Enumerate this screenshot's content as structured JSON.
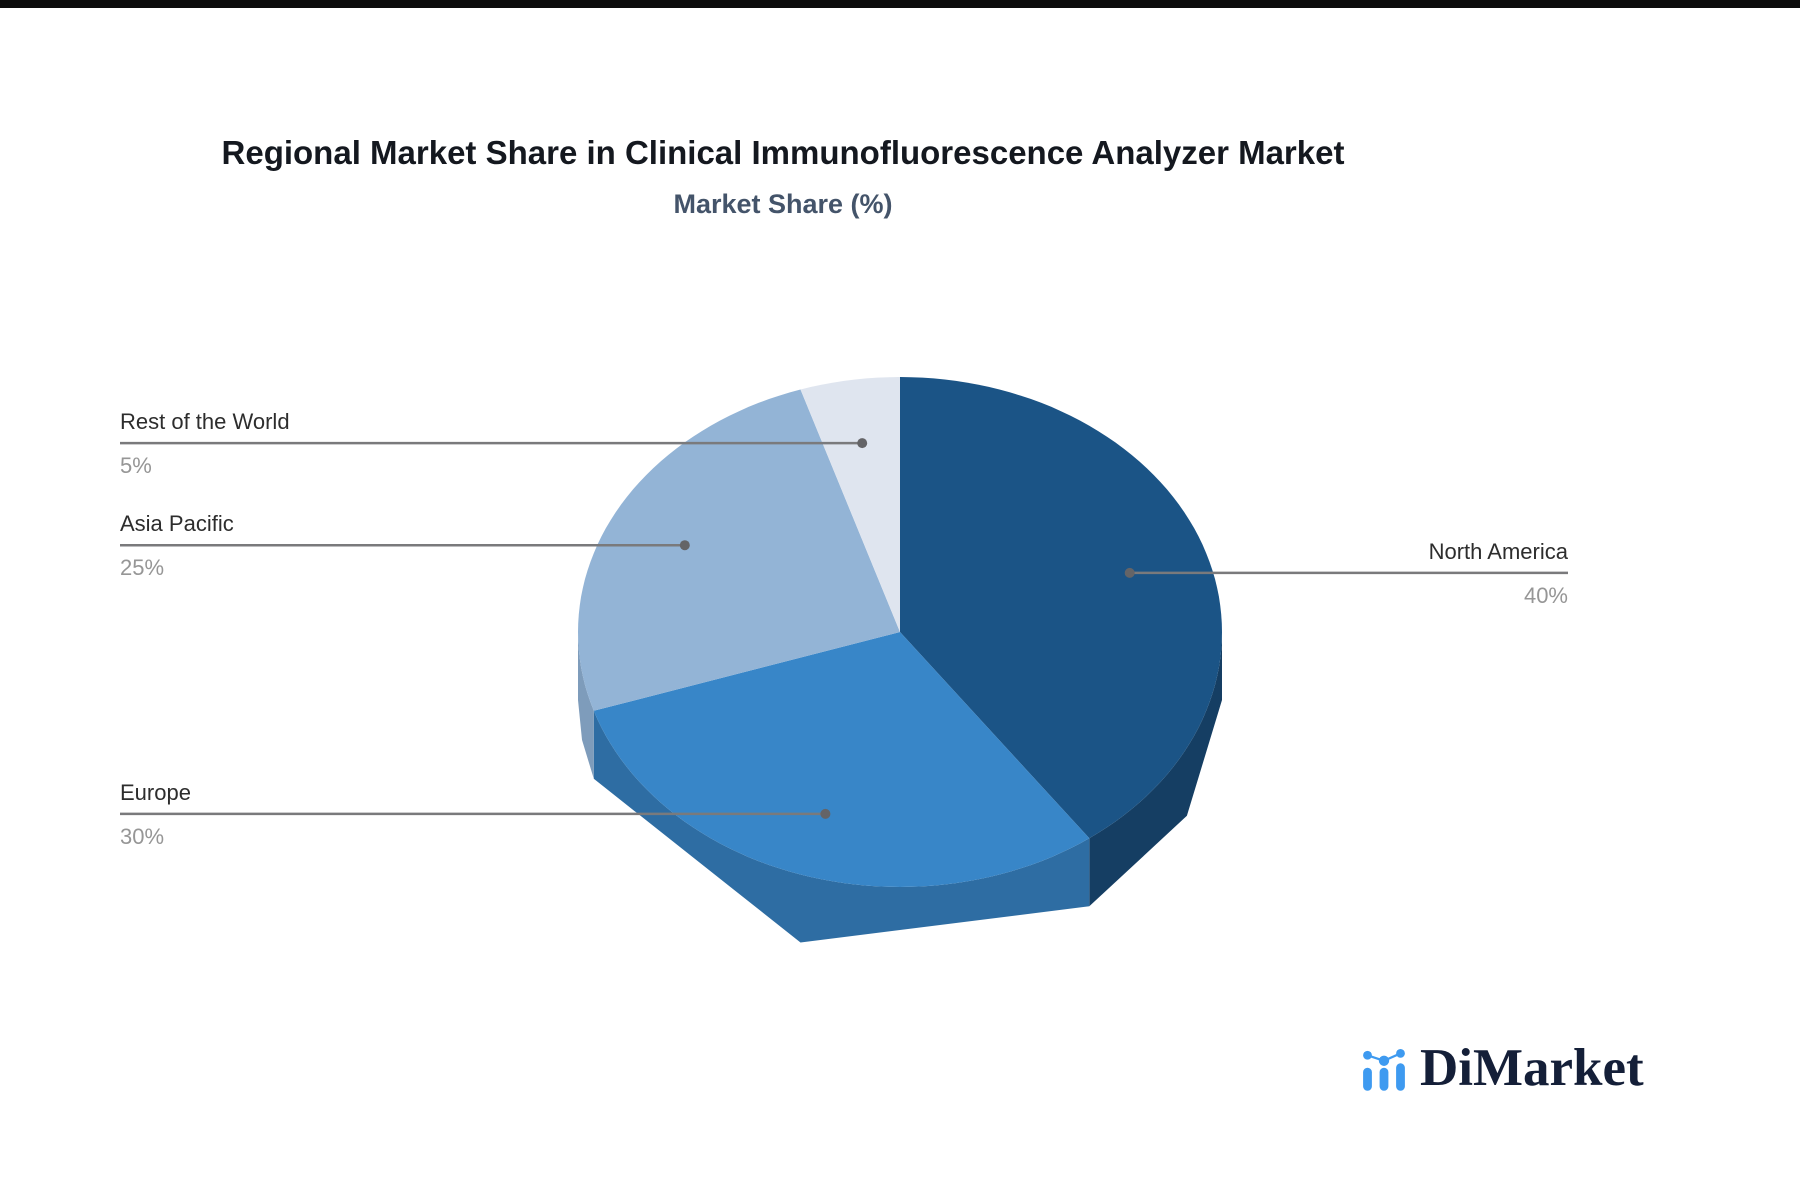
{
  "page": {
    "background": "#ffffff",
    "top_bar_color": "#0C0C0C"
  },
  "header": {
    "title": "Regional Market Share in Clinical Immunofluorescence Analyzer Market",
    "subtitle": "Market Share (%)"
  },
  "chart_data": {
    "type": "pie",
    "style": "3d",
    "title": "Regional Market Share in Clinical Immunofluorescence Analyzer Market",
    "subtitle": "Market Share (%)",
    "unit": "%",
    "start_angle_deg": 0,
    "direction": "clockwise",
    "legend_position": "none",
    "slices": [
      {
        "label": "North America",
        "value": 40,
        "value_label": "40%",
        "color": "#1B5486",
        "side_color": "#153E63"
      },
      {
        "label": "Europe",
        "value": 30,
        "value_label": "30%",
        "color": "#3886C8",
        "side_color": "#2E6DA3"
      },
      {
        "label": "Asia Pacific",
        "value": 25,
        "value_label": "25%",
        "color": "#93B4D6",
        "side_color": "#7E9CBB"
      },
      {
        "label": "Rest of the World",
        "value": 5,
        "value_label": "5%",
        "color": "#DFE5EF",
        "side_color": "#C2CEDE"
      }
    ],
    "label_style": {
      "name_color": "#2D2D2D",
      "value_color": "#969696",
      "line_color": "#7A7A7C",
      "dot_color": "#646467"
    }
  },
  "branding": {
    "logo_text": "DiMarket",
    "logo_color": "#141F38",
    "icon_color": "#3E9AF0",
    "icon_name": "bar-line-chart-icon"
  }
}
